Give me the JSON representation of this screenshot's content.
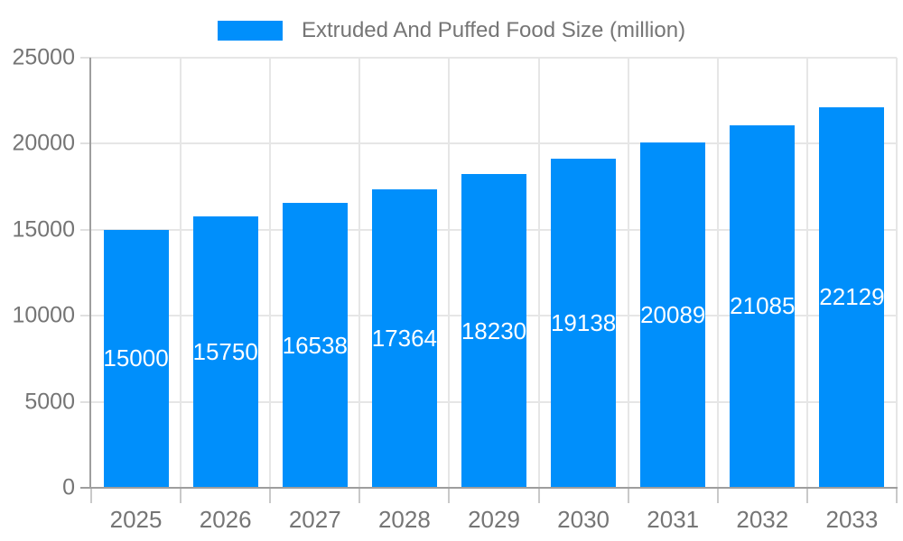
{
  "legend": {
    "label": "Extruded And Puffed Food Size (million)",
    "swatch_color": "#008FFB"
  },
  "chart_data": {
    "type": "bar",
    "title": "Extruded And Puffed Food Size (million)",
    "categories": [
      "2025",
      "2026",
      "2027",
      "2028",
      "2029",
      "2030",
      "2031",
      "2032",
      "2033"
    ],
    "series": [
      {
        "name": "Extruded And Puffed Food Size (million)",
        "values": [
          15000,
          15750,
          16538,
          17364,
          18230,
          19138,
          20089,
          21085,
          22129
        ]
      }
    ],
    "xlabel": "",
    "ylabel": "",
    "ylim": [
      0,
      25000
    ],
    "yticks": [
      0,
      5000,
      10000,
      15000,
      20000,
      25000
    ],
    "grid": true,
    "legend_position": "top",
    "value_labels_inside_bars": true,
    "colors": {
      "bar": "#008FFB",
      "value_label": "#FFFFFF",
      "axis_text": "#757575",
      "axis_line": "#9E9E9E",
      "gridline": "#E6E6E6",
      "y_tick": "#E0E0E0",
      "x_tick": "#C9C9C9"
    }
  }
}
